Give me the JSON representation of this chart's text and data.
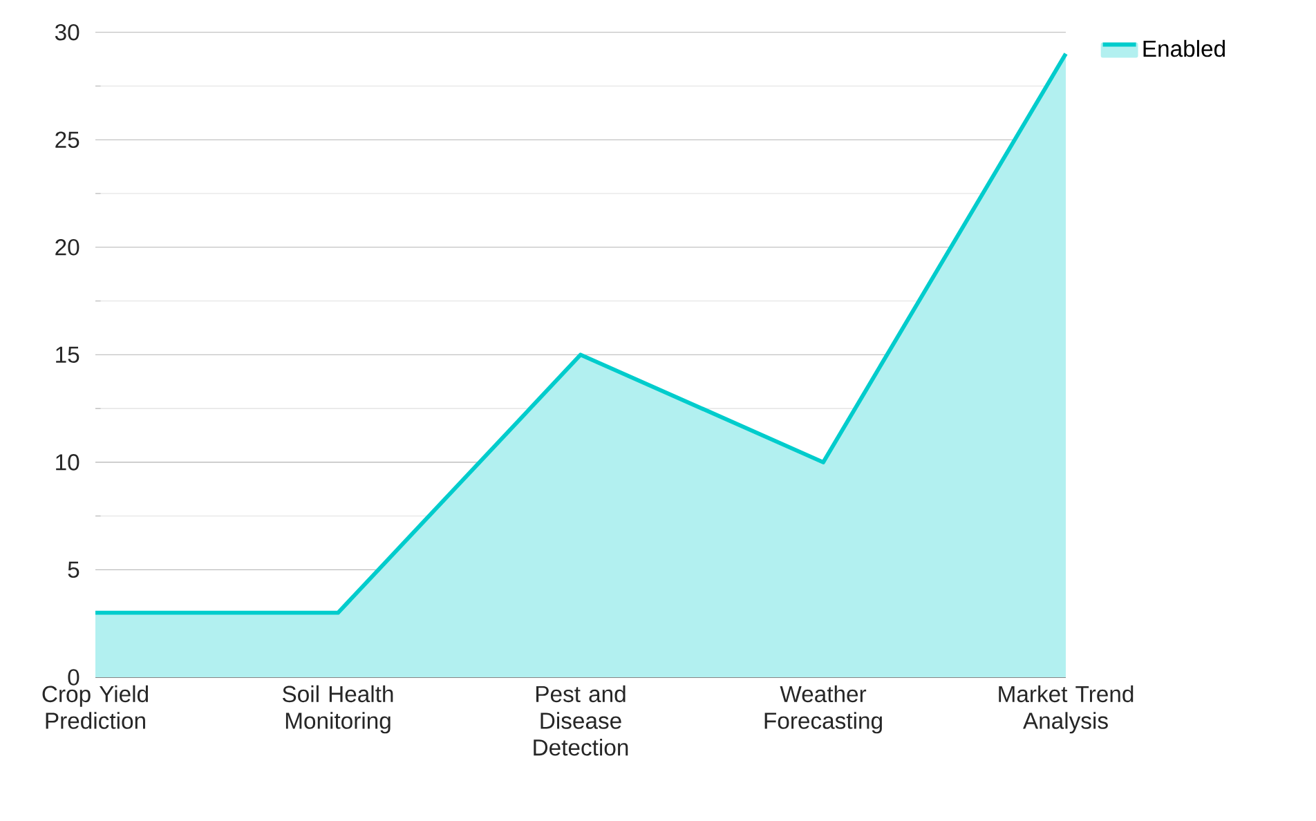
{
  "chart_data": {
    "type": "area",
    "categories": [
      "Crop Yield Prediction",
      "Soil Health Monitoring",
      "Pest and Disease Detection",
      "Weather Forecasting",
      "Market Trend Analysis"
    ],
    "series": [
      {
        "name": "Enabled",
        "color": "#00cccc",
        "values": [
          3,
          3,
          15,
          10,
          29
        ]
      }
    ],
    "ylim": [
      0,
      30
    ],
    "yticks": [
      0,
      5,
      10,
      15,
      20,
      25,
      30
    ],
    "grid": "y",
    "legend": "top right"
  }
}
